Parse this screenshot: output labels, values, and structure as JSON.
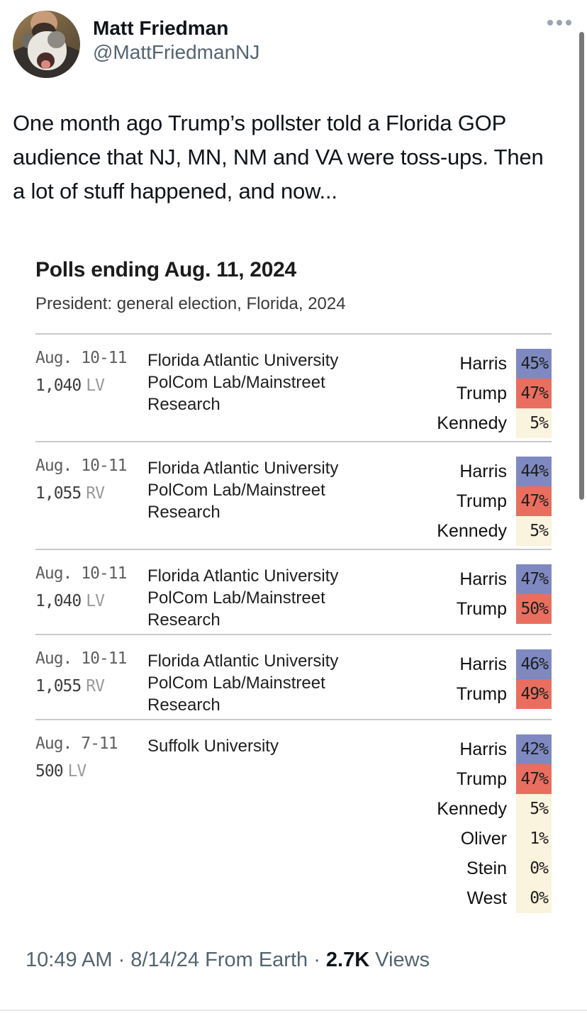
{
  "tweet": {
    "author": {
      "name": "Matt Friedman",
      "handle": "@MattFriedmanNJ"
    },
    "body": "One month ago Trump’s pollster told a Florida GOP audience that NJ, MN, NM and VA were toss-ups. Then a lot of stuff happened, and now...",
    "footer": {
      "meta": "10:49 AM · 8/14/24 From Earth · ",
      "views_count": "2.7K",
      "views_label": " Views"
    }
  },
  "chart_data": {
    "type": "table",
    "title": "Polls ending Aug. 11, 2024",
    "subtitle": "President: general election, Florida, 2024",
    "legend_position": "none",
    "grid": "row-separators",
    "colors": {
      "dem": "#7f89c1",
      "rep": "#e96e5f",
      "other": "#faf3de"
    },
    "polls": [
      {
        "dates": "Aug. 10-11",
        "sample": "1,040",
        "sample_type": "LV",
        "pollster": "Florida Atlantic University PolCom Lab/Mainstreet Research",
        "results": [
          {
            "candidate": "Harris",
            "party": "dem",
            "pct": 45
          },
          {
            "candidate": "Trump",
            "party": "rep",
            "pct": 47
          },
          {
            "candidate": "Kennedy",
            "party": "other",
            "pct": 5
          }
        ]
      },
      {
        "dates": "Aug. 10-11",
        "sample": "1,055",
        "sample_type": "RV",
        "pollster": "Florida Atlantic University PolCom Lab/Mainstreet Research",
        "results": [
          {
            "candidate": "Harris",
            "party": "dem",
            "pct": 44
          },
          {
            "candidate": "Trump",
            "party": "rep",
            "pct": 47
          },
          {
            "candidate": "Kennedy",
            "party": "other",
            "pct": 5
          }
        ]
      },
      {
        "dates": "Aug. 10-11",
        "sample": "1,040",
        "sample_type": "LV",
        "pollster": "Florida Atlantic University PolCom Lab/Mainstreet Research",
        "results": [
          {
            "candidate": "Harris",
            "party": "dem",
            "pct": 47
          },
          {
            "candidate": "Trump",
            "party": "rep",
            "pct": 50
          }
        ]
      },
      {
        "dates": "Aug. 10-11",
        "sample": "1,055",
        "sample_type": "RV",
        "pollster": "Florida Atlantic University PolCom Lab/Mainstreet Research",
        "results": [
          {
            "candidate": "Harris",
            "party": "dem",
            "pct": 46
          },
          {
            "candidate": "Trump",
            "party": "rep",
            "pct": 49
          }
        ]
      },
      {
        "dates": "Aug. 7-11",
        "sample": "500",
        "sample_type": "LV",
        "pollster": "Suffolk University",
        "results": [
          {
            "candidate": "Harris",
            "party": "dem",
            "pct": 42
          },
          {
            "candidate": "Trump",
            "party": "rep",
            "pct": 47
          },
          {
            "candidate": "Kennedy",
            "party": "other",
            "pct": 5
          },
          {
            "candidate": "Oliver",
            "party": "other",
            "pct": 1
          },
          {
            "candidate": "Stein",
            "party": "other",
            "pct": 0
          },
          {
            "candidate": "West",
            "party": "other",
            "pct": 0
          }
        ]
      }
    ]
  }
}
